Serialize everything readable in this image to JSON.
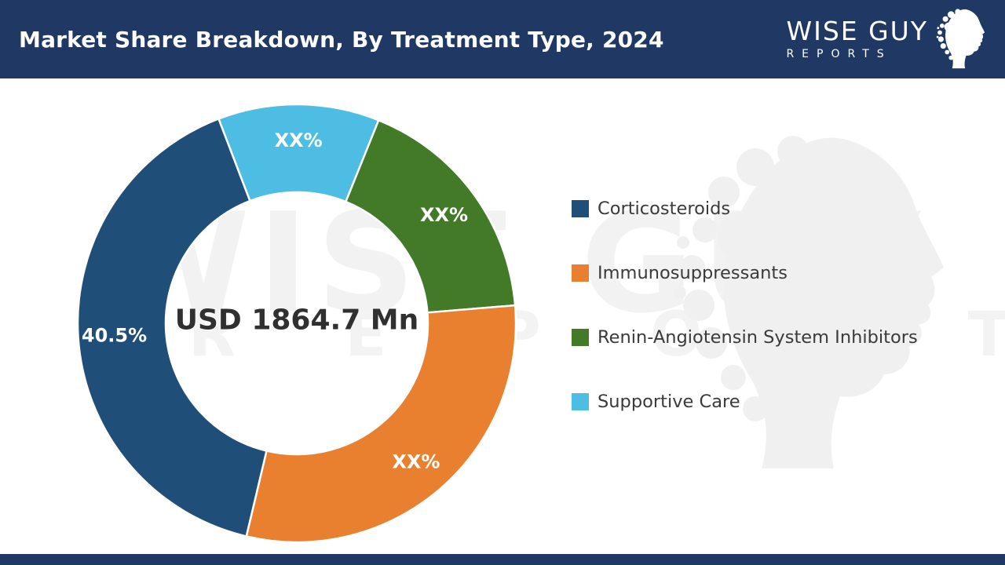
{
  "header": {
    "title": "Market Share Breakdown, By Treatment Type, 2024",
    "logo": {
      "line1": "WISE GUY",
      "line2": "REPORTS",
      "icon": "dotted-head-profile-icon"
    }
  },
  "watermark": {
    "line1": "WISE GUY",
    "line2": "R E P O R T S",
    "icon": "dotted-head-profile-watermark"
  },
  "colors": {
    "header_bg": "#203864",
    "footer_bg": "#203864",
    "title_text": "#ffffff",
    "center_text": "#303030",
    "legend_text": "#3a3a3a",
    "slice_label_text": "#ffffff",
    "watermark": "#f2f2f2"
  },
  "chart_data": {
    "type": "pie",
    "subtype": "donut",
    "title": "Market Share Breakdown, By Treatment Type, 2024",
    "center_text": "USD 1864.7 Mn",
    "legend_position": "right",
    "start_angle_clockwise_from_top_deg": 193.3,
    "series": [
      {
        "id": "corticosteroids",
        "name": "Corticosteroids",
        "value_label": "40.5%",
        "percent": 40.5,
        "color": "#1f4e79"
      },
      {
        "id": "supportive-care",
        "name": "Supportive Care",
        "value_label": "XX%",
        "percent": 11.9,
        "color": "#4ebde4"
      },
      {
        "id": "renin-angiotensin-system-inhibitors",
        "name": "Renin-Angiotensin System Inhibitors",
        "value_label": "XX%",
        "percent": 17.6,
        "color": "#427a28"
      },
      {
        "id": "immunosuppressants",
        "name": "Immunosuppressants",
        "value_label": "XX%",
        "percent": 30.0,
        "color": "#e8802f"
      }
    ]
  },
  "legend": {
    "items": [
      {
        "label": "Corticosteroids",
        "color": "#1f4e79"
      },
      {
        "label": "Immunosuppressants",
        "color": "#e8802f"
      },
      {
        "label": "Renin-Angiotensin System Inhibitors",
        "color": "#427a28"
      },
      {
        "label": "Supportive Care",
        "color": "#4ebde4"
      }
    ]
  }
}
